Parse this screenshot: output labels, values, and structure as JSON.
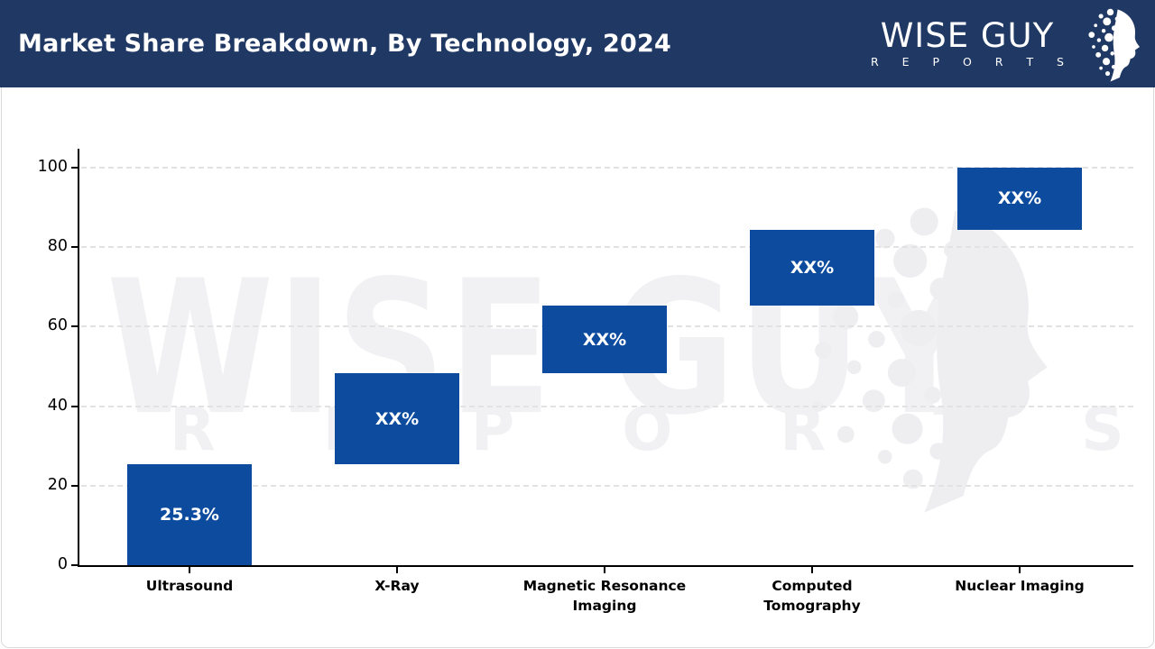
{
  "header": {
    "title": "Market Share Breakdown, By Technology, 2024",
    "bg_color": "#1f3864",
    "text_color": "#ffffff",
    "logo": {
      "line1": "WISE GUY",
      "line2": "R E P O R T S"
    }
  },
  "watermark": {
    "line1": "WISE GUY",
    "line2": "R E P O R T S"
  },
  "chart_data": {
    "type": "bar",
    "subtype": "waterfall",
    "title": "Market Share Breakdown, By Technology, 2024",
    "categories": [
      "Ultrasound",
      "X-Ray",
      "Magnetic Resonance\nImaging",
      "Computed\nTomography",
      "Nuclear Imaging"
    ],
    "segments": [
      {
        "category": "Ultrasound",
        "start": 0,
        "end": 25.3,
        "label": "25.3%"
      },
      {
        "category": "X-Ray",
        "start": 25.3,
        "end": 48.3,
        "label": "XX%"
      },
      {
        "category": "Magnetic Resonance Imaging",
        "start": 48.3,
        "end": 65.2,
        "label": "XX%"
      },
      {
        "category": "Computed Tomography",
        "start": 65.2,
        "end": 84.4,
        "label": "XX%"
      },
      {
        "category": "Nuclear Imaging",
        "start": 84.4,
        "end": 100,
        "label": "XX%"
      }
    ],
    "xlabel": "",
    "ylabel": "",
    "ylim": [
      0,
      105
    ],
    "yticks": [
      0,
      20,
      40,
      60,
      80,
      100
    ],
    "grid": "horizontal-dashed",
    "legend": "none",
    "bar_color": "#0c4b9e",
    "bar_label_color": "#ffffff",
    "axis_color": "#000000",
    "gridline_color": "#e2e2e2",
    "hairline_color": "#d9d9d9"
  }
}
